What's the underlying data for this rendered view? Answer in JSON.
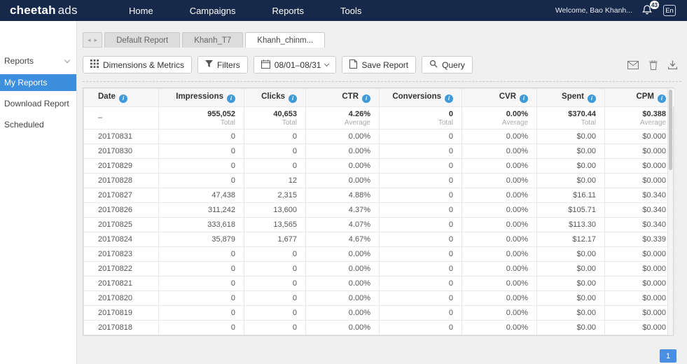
{
  "topbar": {
    "brand_bold": "cheetah",
    "brand_light": "ads",
    "nav": [
      {
        "label": "Home"
      },
      {
        "label": "Campaigns"
      },
      {
        "label": "Reports"
      },
      {
        "label": "Tools"
      }
    ],
    "welcome": "Welcome,",
    "username": "Bao Khanh...",
    "notification_count": "43",
    "language": "En"
  },
  "sidebar": {
    "section_label": "Reports",
    "items": [
      {
        "label": "My Reports",
        "active": true
      },
      {
        "label": "Download Report",
        "active": false
      },
      {
        "label": "Scheduled",
        "active": false
      }
    ]
  },
  "tabs": [
    {
      "label": "Default Report",
      "active": false
    },
    {
      "label": "Khanh_T7",
      "active": false
    },
    {
      "label": "Khanh_chinm...",
      "active": true
    }
  ],
  "toolbar": {
    "dimensions_metrics_label": "Dimensions & Metrics",
    "filters_label": "Filters",
    "date_range_label": "08/01–08/31",
    "save_report_label": "Save Report",
    "query_label": "Query"
  },
  "icons": {
    "toolbar_right": [
      "envelope-icon",
      "trash-icon",
      "download-icon"
    ],
    "topbar": [
      "bell-icon"
    ],
    "colors": {
      "info_icon": "#3f9ad9",
      "active_blue": "#3d8fdd",
      "pagination_blue": "#4a90e2",
      "topbar_navy": "#16294a"
    }
  },
  "table": {
    "columns": [
      "Date",
      "Impressions",
      "Clicks",
      "CTR",
      "Conversions",
      "CVR",
      "Spent",
      "CPM"
    ],
    "totals": {
      "date": "–",
      "cells": [
        {
          "value": "955,052",
          "sub": "Total"
        },
        {
          "value": "40,653",
          "sub": "Total"
        },
        {
          "value": "4.26%",
          "sub": "Average"
        },
        {
          "value": "0",
          "sub": "Total"
        },
        {
          "value": "0.00%",
          "sub": "Average"
        },
        {
          "value": "$370.44",
          "sub": "Total"
        },
        {
          "value": "$0.388",
          "sub": "Average"
        }
      ]
    },
    "rows": [
      [
        "20170831",
        "0",
        "0",
        "0.00%",
        "0",
        "0.00%",
        "$0.00",
        "$0.000"
      ],
      [
        "20170830",
        "0",
        "0",
        "0.00%",
        "0",
        "0.00%",
        "$0.00",
        "$0.000"
      ],
      [
        "20170829",
        "0",
        "0",
        "0.00%",
        "0",
        "0.00%",
        "$0.00",
        "$0.000"
      ],
      [
        "20170828",
        "0",
        "12",
        "0.00%",
        "0",
        "0.00%",
        "$0.00",
        "$0.000"
      ],
      [
        "20170827",
        "47,438",
        "2,315",
        "4.88%",
        "0",
        "0.00%",
        "$16.11",
        "$0.340"
      ],
      [
        "20170826",
        "311,242",
        "13,600",
        "4.37%",
        "0",
        "0.00%",
        "$105.71",
        "$0.340"
      ],
      [
        "20170825",
        "333,618",
        "13,565",
        "4.07%",
        "0",
        "0.00%",
        "$113.30",
        "$0.340"
      ],
      [
        "20170824",
        "35,879",
        "1,677",
        "4.67%",
        "0",
        "0.00%",
        "$12.17",
        "$0.339"
      ],
      [
        "20170823",
        "0",
        "0",
        "0.00%",
        "0",
        "0.00%",
        "$0.00",
        "$0.000"
      ],
      [
        "20170822",
        "0",
        "0",
        "0.00%",
        "0",
        "0.00%",
        "$0.00",
        "$0.000"
      ],
      [
        "20170821",
        "0",
        "0",
        "0.00%",
        "0",
        "0.00%",
        "$0.00",
        "$0.000"
      ],
      [
        "20170820",
        "0",
        "0",
        "0.00%",
        "0",
        "0.00%",
        "$0.00",
        "$0.000"
      ],
      [
        "20170819",
        "0",
        "0",
        "0.00%",
        "0",
        "0.00%",
        "$0.00",
        "$0.000"
      ],
      [
        "20170818",
        "0",
        "0",
        "0.00%",
        "0",
        "0.00%",
        "$0.00",
        "$0.000"
      ]
    ]
  },
  "pagination": {
    "current_page": "1"
  }
}
